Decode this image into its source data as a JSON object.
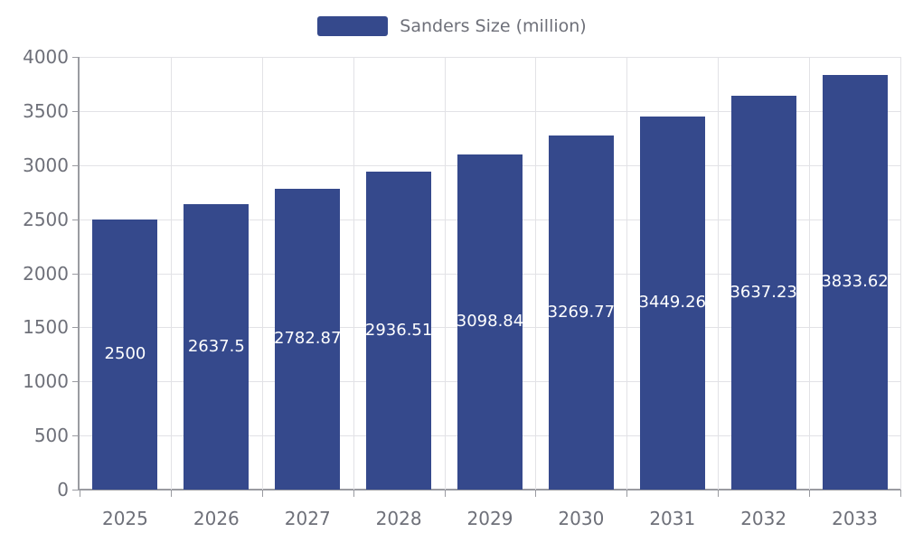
{
  "legend": {
    "label": "Sanders Size (million)"
  },
  "colors": {
    "bar": "#35498c",
    "grid": "#e2e2e6",
    "axis": "#9a9ba1",
    "text": "#6e7079",
    "bar_label": "#ffffff",
    "background": "#ffffff"
  },
  "chart_data": {
    "type": "bar",
    "title": "",
    "series": [
      {
        "name": "Sanders Size (million)",
        "values": [
          2500,
          2637.5,
          2782.87,
          2936.51,
          3098.84,
          3269.77,
          3449.26,
          3637.23,
          3833.62
        ]
      }
    ],
    "categories": [
      "2025",
      "2026",
      "2027",
      "2028",
      "2029",
      "2030",
      "2031",
      "2032",
      "2033"
    ],
    "value_labels": [
      "2500",
      "2637.5",
      "2782.87",
      "2936.51",
      "3098.84",
      "3269.77",
      "3449.26",
      "3637.23",
      "3833.62"
    ],
    "xlabel": "",
    "ylabel": "",
    "ylim": [
      0,
      4000
    ],
    "yticks": [
      0,
      500,
      1000,
      1500,
      2000,
      2500,
      3000,
      3500,
      4000
    ],
    "grid": true,
    "legend_position": "top-center",
    "bar_label_position": "inside-middle"
  }
}
